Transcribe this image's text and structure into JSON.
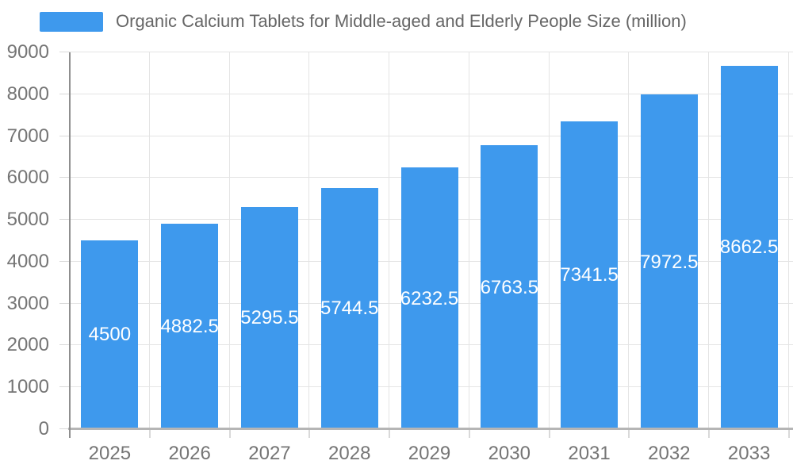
{
  "legend": {
    "label": "Organic Calcium Tablets for Middle-aged and Elderly People Size (million)"
  },
  "colors": {
    "bar": "#3E99ED",
    "value_label": "#ffffff",
    "axis_text": "#757575",
    "legend_text": "#666666"
  },
  "chart_data": {
    "type": "bar",
    "title": "Organic Calcium Tablets for Middle-aged and Elderly People Size (million)",
    "categories": [
      "2025",
      "2026",
      "2027",
      "2028",
      "2029",
      "2030",
      "2031",
      "2032",
      "2033"
    ],
    "values": [
      4500,
      4882.5,
      5295.5,
      5744.5,
      6232.5,
      6763.5,
      7341.5,
      7972.5,
      8662.5
    ],
    "series_name": "Organic Calcium Tablets for Middle-aged and Elderly People Size (million)",
    "xlabel": "",
    "ylabel": "",
    "ylim": [
      0,
      9000
    ],
    "ytick_step": 1000,
    "ytick_labels": [
      "0",
      "1000",
      "2000",
      "3000",
      "4000",
      "5000",
      "6000",
      "7000",
      "8000",
      "9000"
    ],
    "grid": true,
    "legend_position": "top-left",
    "value_labels_shown": true,
    "value_label_position": "inside-middle"
  }
}
